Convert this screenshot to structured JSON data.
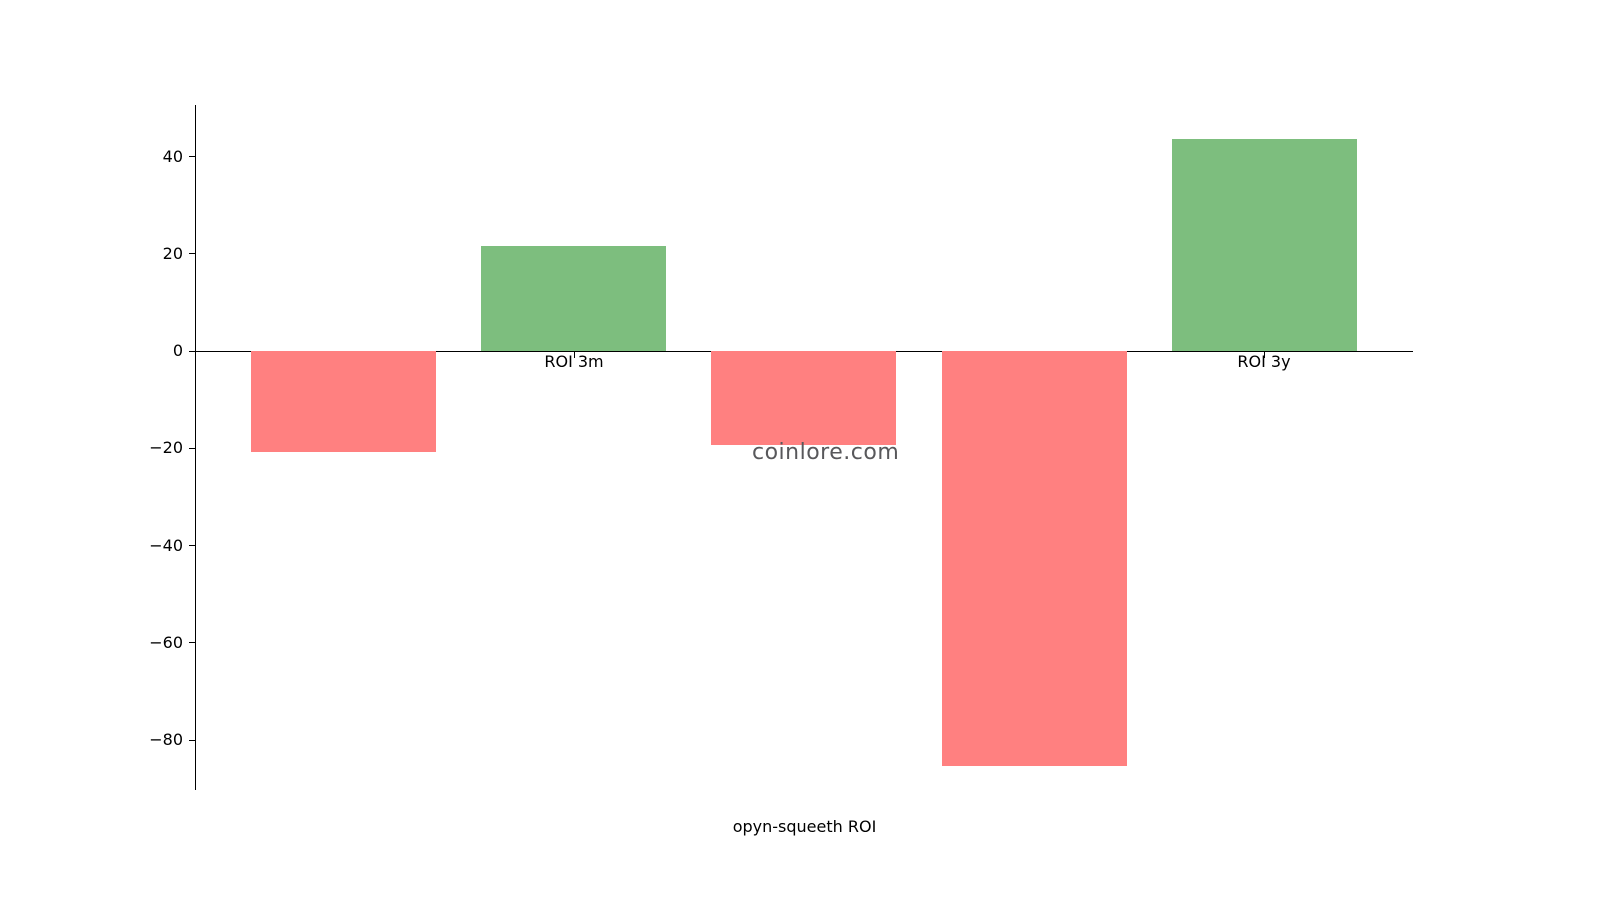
{
  "chart": {
    "watermark_text": "coinlore.com"
  },
  "chart_data": {
    "type": "bar",
    "title": "",
    "xlabel": "opyn-squeeth ROI",
    "ylabel": "",
    "categories": [
      "",
      "ROI 3m",
      "",
      "",
      "ROI 3y"
    ],
    "values": [
      -20.7,
      21.5,
      -19.4,
      -85.3,
      43.5
    ],
    "y_ticks": [
      40,
      20,
      0,
      -20,
      -40,
      -60,
      -80
    ],
    "y_tick_labels": [
      "40",
      "20",
      "0",
      "−20",
      "−40",
      "−60",
      "−80"
    ],
    "ylim": [
      -90.5,
      50.5
    ],
    "grid": false,
    "legend_position": "none",
    "bar_colors": [
      "#ff8080",
      "#7dbe7e",
      "#ff8080",
      "#ff8080",
      "#7dbe7e"
    ],
    "colors": {
      "positive_bar": "#7dbe7e",
      "negative_bar": "#ff8080",
      "axis": "#000000",
      "tick_label": "#000000",
      "watermark": "#58585b",
      "background": "#ffffff"
    }
  }
}
